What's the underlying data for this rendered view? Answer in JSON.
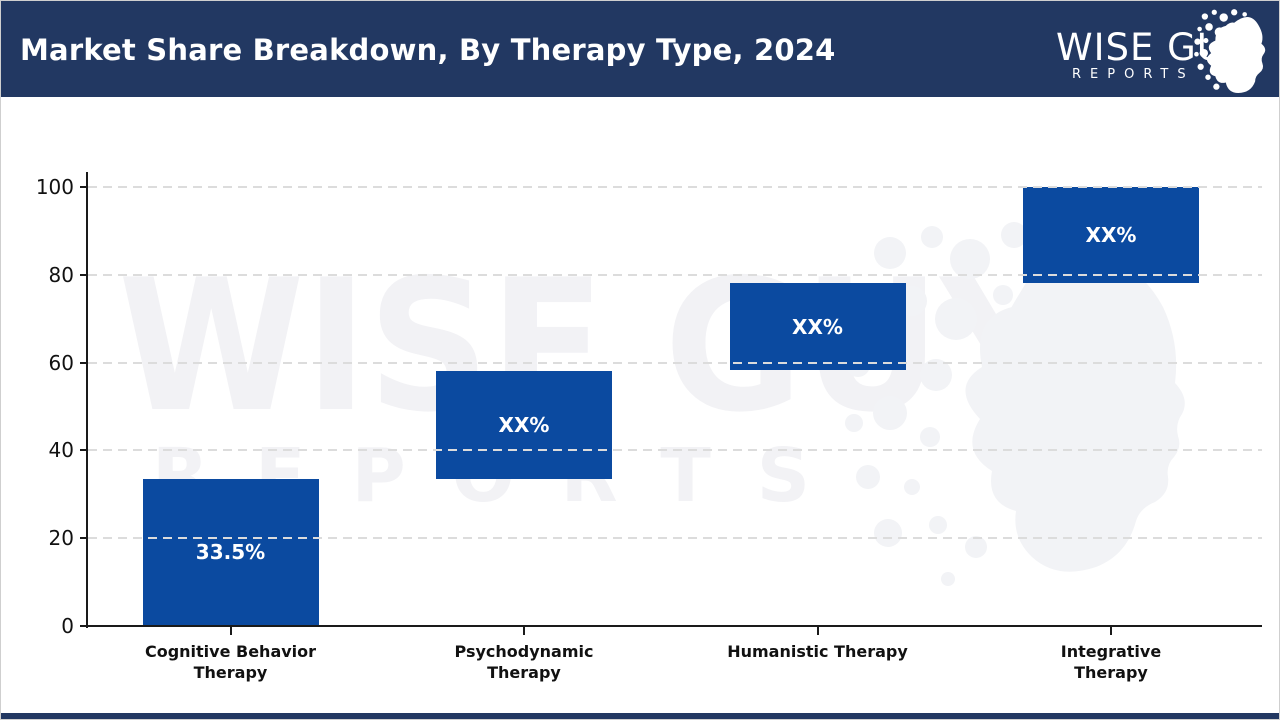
{
  "header": {
    "title": "Market Share Breakdown, By Therapy Type, 2024",
    "logo": {
      "name": "WISE GUY",
      "sub": "REPORTS"
    }
  },
  "watermark": {
    "name": "WISE GUY",
    "sub": "REPORTS"
  },
  "chart_data": {
    "type": "bar",
    "variant": "floating-segment-waterfall",
    "title": "Market Share Breakdown, By Therapy Type, 2024",
    "categories": [
      "Cognitive Behavior Therapy",
      "Psychodynamic Therapy",
      "Humanistic Therapy",
      "Integrative Therapy"
    ],
    "category_lines": [
      [
        "Cognitive Behavior",
        "Therapy"
      ],
      [
        "Psychodynamic",
        "Therapy"
      ],
      [
        "Humanistic Therapy"
      ],
      [
        "Integrative",
        "Therapy"
      ]
    ],
    "bars": [
      {
        "category": "Cognitive Behavior Therapy",
        "label": "33.5%",
        "start": 0,
        "end": 33.5
      },
      {
        "category": "Psychodynamic Therapy",
        "label": "XX%",
        "start": 33.5,
        "end": 58.2
      },
      {
        "category": "Humanistic Therapy",
        "label": "XX%",
        "start": 58.2,
        "end": 78.2
      },
      {
        "category": "Integrative Therapy",
        "label": "XX%",
        "start": 78.2,
        "end": 100
      }
    ],
    "yticks": [
      0,
      20,
      40,
      60,
      80,
      100
    ],
    "ylim": [
      0,
      103.5
    ],
    "xlabel": "",
    "ylabel": "",
    "legend": "none",
    "grid": "horizontal-dashed",
    "colors": {
      "bar": "#0b4aa0",
      "grid": "#dcdcdc",
      "axis": "#1a1a1a",
      "header_bg": "#223862",
      "value_label": "#ffffff",
      "watermark": "#f2f2f5"
    }
  }
}
